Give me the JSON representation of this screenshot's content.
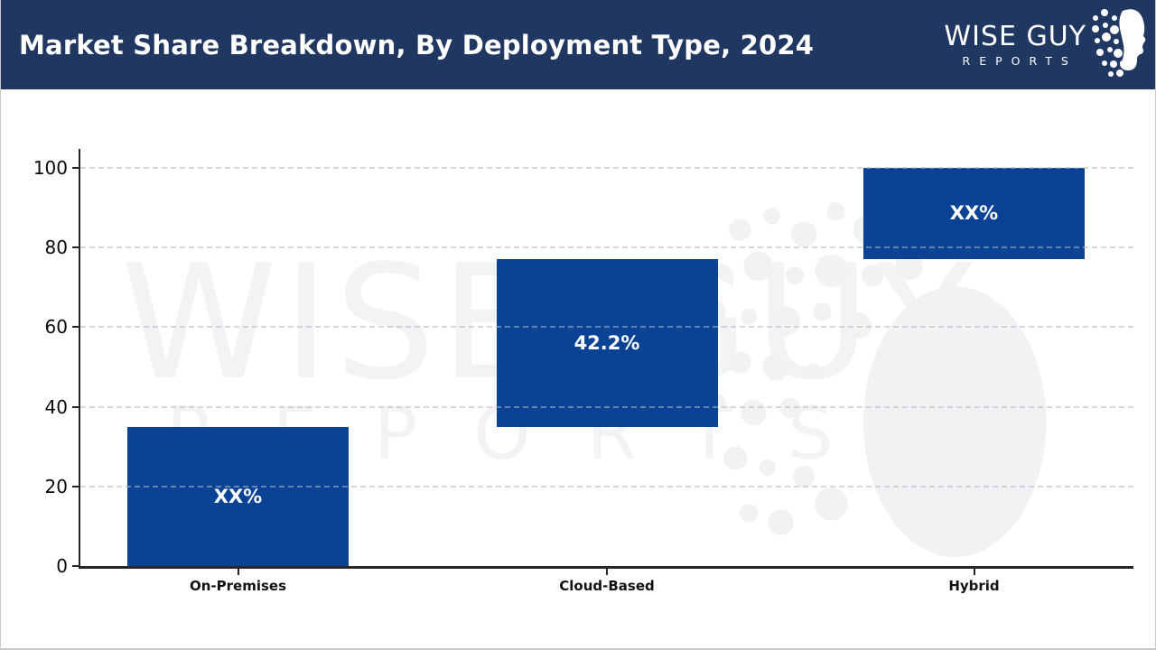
{
  "header": {
    "title": "Market Share Breakdown, By Deployment Type, 2024",
    "logo": {
      "line1": "WISE GUY",
      "line2": "REPORTS"
    }
  },
  "watermark": {
    "line1": "WISE GUY",
    "line2": "REPORTS"
  },
  "colors": {
    "header_bg": "#203762",
    "bar": "#0a4396",
    "axis": "#262626",
    "gridline": "#d6d9dc",
    "watermark": "#f2f3f5"
  },
  "chart_data": {
    "type": "bar",
    "subtype": "waterfall",
    "title": "Market Share Breakdown, By Deployment Type, 2024",
    "categories": [
      "On-Premises",
      "Cloud-Based",
      "Hybrid"
    ],
    "segments": [
      {
        "category": "On-Premises",
        "start": 0,
        "end": 35,
        "value": 35,
        "label": "XX%"
      },
      {
        "category": "Cloud-Based",
        "start": 35,
        "end": 77.2,
        "value": 42.2,
        "label": "42.2%"
      },
      {
        "category": "Hybrid",
        "start": 77.2,
        "end": 100,
        "value": 22.8,
        "label": "XX%"
      }
    ],
    "yticks": [
      0,
      20,
      40,
      60,
      80,
      100
    ],
    "ylim": [
      0,
      100
    ],
    "xlabel": "",
    "ylabel": "",
    "grid": "dashed horizontal",
    "legend": "none"
  }
}
